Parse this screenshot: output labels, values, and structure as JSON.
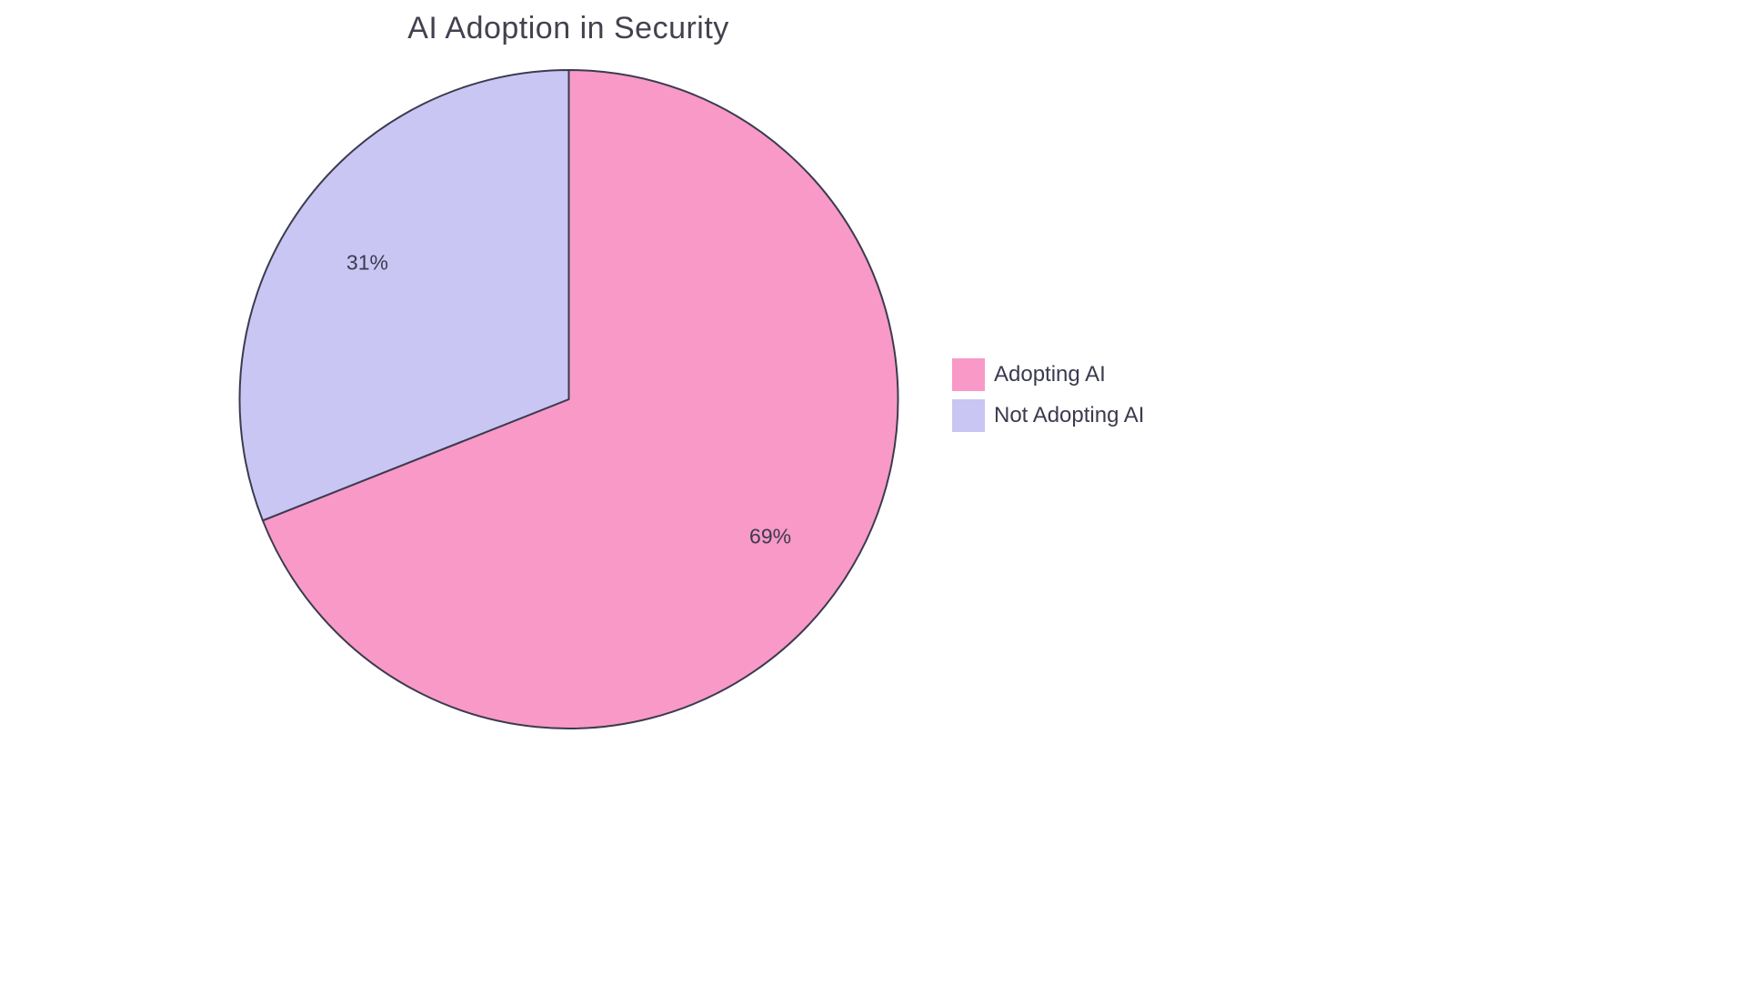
{
  "chart_data": {
    "type": "pie",
    "title": "AI Adoption in Security",
    "labels": [
      "Adopting AI",
      "Not Adopting AI"
    ],
    "values": [
      69,
      31
    ],
    "slice_labels": [
      "69%",
      "31%"
    ],
    "colors": [
      "#F899C7",
      "#C9C6F4"
    ],
    "stroke_color": "#3B3B4F",
    "text_color": "#3B3B4F",
    "start_angle_deg": 0,
    "direction": "clockwise",
    "legend_position": "right",
    "grid": false
  }
}
